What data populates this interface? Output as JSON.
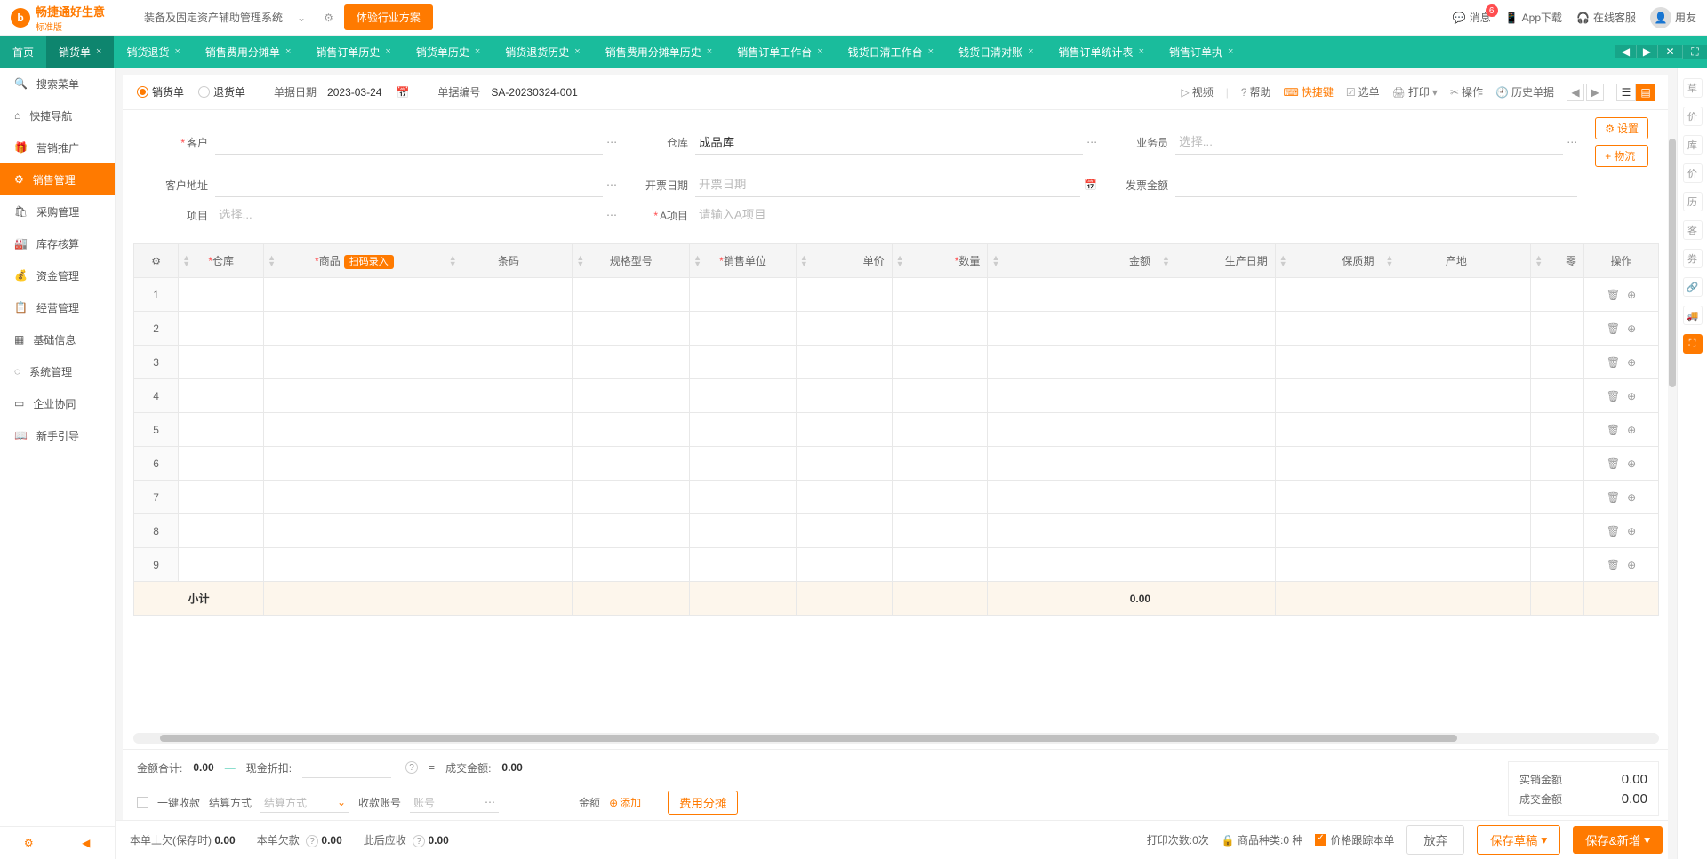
{
  "topbar": {
    "logo_text": "畅捷通好生意",
    "logo_sub": "标准版",
    "system_name": "装备及固定资产辅助管理系统",
    "experience_btn": "体验行业方案",
    "message": "消息",
    "message_badge": "6",
    "app_download": "App下载",
    "online_service": "在线客服",
    "user_name": "用友"
  },
  "tabs": [
    {
      "label": "首页",
      "closable": false,
      "type": "home"
    },
    {
      "label": "销货单",
      "closable": true,
      "type": "active"
    },
    {
      "label": "销货退货",
      "closable": true
    },
    {
      "label": "销售费用分摊单",
      "closable": true
    },
    {
      "label": "销售订单历史",
      "closable": true
    },
    {
      "label": "销货单历史",
      "closable": true
    },
    {
      "label": "销货退货历史",
      "closable": true
    },
    {
      "label": "销售费用分摊单历史",
      "closable": true
    },
    {
      "label": "销售订单工作台",
      "closable": true
    },
    {
      "label": "钱货日清工作台",
      "closable": true
    },
    {
      "label": "钱货日清对账",
      "closable": true
    },
    {
      "label": "销售订单统计表",
      "closable": true
    },
    {
      "label": "销售订单执",
      "closable": true
    }
  ],
  "sidebar": {
    "items": [
      {
        "icon": "🔍",
        "label": "搜索菜单"
      },
      {
        "icon": "⌂",
        "label": "快捷导航"
      },
      {
        "icon": "🎁",
        "label": "营销推广"
      },
      {
        "icon": "⚙",
        "label": "销售管理",
        "active": true
      },
      {
        "icon": "🛍",
        "label": "采购管理"
      },
      {
        "icon": "🏭",
        "label": "库存核算"
      },
      {
        "icon": "💰",
        "label": "资金管理"
      },
      {
        "icon": "📋",
        "label": "经营管理"
      },
      {
        "icon": "▦",
        "label": "基础信息"
      },
      {
        "icon": "◌",
        "label": "系统管理"
      },
      {
        "icon": "▭",
        "label": "企业协同"
      },
      {
        "icon": "📖",
        "label": "新手引导"
      }
    ]
  },
  "form_header": {
    "radio1": "销货单",
    "radio2": "退货单",
    "doc_date_label": "单据日期",
    "doc_date": "2023-03-24",
    "doc_no_label": "单据编号",
    "doc_no": "SA-20230324-001",
    "links": {
      "video": "视频",
      "help": "帮助",
      "shortcut": "快捷键",
      "select_order": "选单",
      "print": "打印",
      "operate": "操作",
      "history": "历史单据"
    }
  },
  "fields": {
    "customer_label": "客户",
    "warehouse_label": "仓库",
    "warehouse_value": "成品库",
    "salesman_label": "业务员",
    "salesman_placeholder": "选择...",
    "settings_btn": "设置",
    "logistics_btn": "物流",
    "customer_addr_label": "客户地址",
    "invoice_date_label": "开票日期",
    "invoice_date_placeholder": "开票日期",
    "invoice_amount_label": "发票金额",
    "project_label": "项目",
    "project_placeholder": "选择...",
    "a_project_label": "A项目",
    "a_project_placeholder": "请输入A项目"
  },
  "table": {
    "headers": {
      "warehouse": "仓库",
      "product": "商品",
      "scan_entry": "扫码录入",
      "barcode": "条码",
      "spec": "规格型号",
      "unit": "销售单位",
      "price": "单价",
      "qty": "数量",
      "amount": "金额",
      "prod_date": "生产日期",
      "shelf_life": "保质期",
      "origin": "产地",
      "retail": "零",
      "action": "操作"
    },
    "row_count": 9,
    "subtotal_label": "小计",
    "subtotal_amount": "0.00"
  },
  "summary": {
    "amount_total_label": "金额合计:",
    "amount_total": "0.00",
    "cash_discount_label": "现金折扣:",
    "deal_amount_label": "成交金额:",
    "deal_amount": "0.00"
  },
  "payment": {
    "one_click_label": "一键收款",
    "settle_method_label": "结算方式",
    "settle_method_placeholder": "结算方式",
    "account_label": "收款账号",
    "account_placeholder": "账号",
    "amount_label": "金额",
    "add": "添加",
    "fee_share": "费用分摊"
  },
  "right_summary": {
    "actual_label": "实销金额",
    "actual_value": "0.00",
    "deal_label": "成交金额",
    "deal_value": "0.00"
  },
  "bottom": {
    "prev_balance_label": "本单上欠(保存时)",
    "prev_balance": "0.00",
    "this_balance_label": "本单欠款",
    "this_balance": "0.00",
    "after_receivable_label": "此后应收",
    "after_receivable": "0.00",
    "print_count_label": "打印次数:",
    "print_count": "0次",
    "product_kinds_label": "商品种类:",
    "product_kinds": "0 种",
    "price_track_label": "价格跟踪本单",
    "discard": "放弃",
    "save_draft": "保存草稿",
    "save_new": "保存&新增"
  },
  "rail": [
    "草",
    "价",
    "库",
    "价",
    "历",
    "客",
    "券",
    "🔗",
    "🚚",
    "⛶"
  ]
}
